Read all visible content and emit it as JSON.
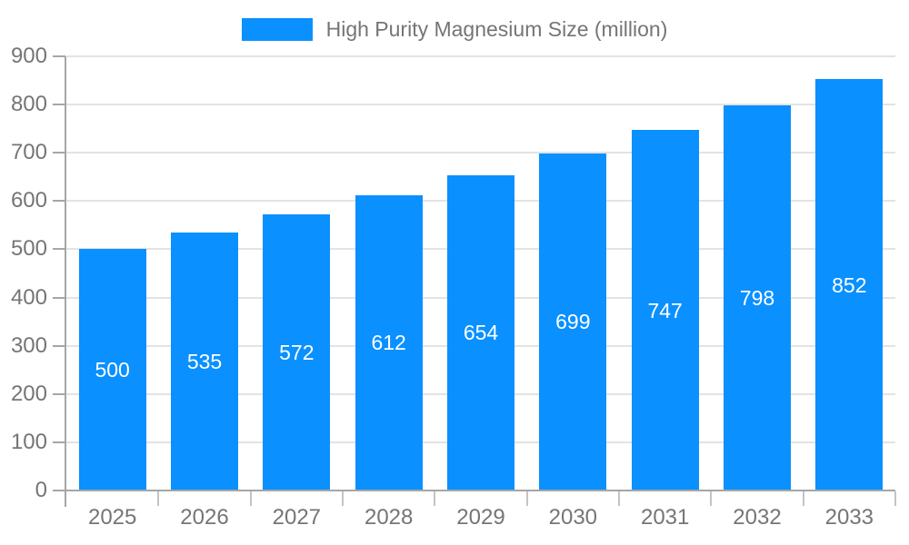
{
  "chart_data": {
    "type": "bar",
    "title": "High Purity Magnesium Size (million)",
    "legend": [
      "High Purity Magnesium Size (million)"
    ],
    "legend_position": "top-center",
    "categories": [
      "2025",
      "2026",
      "2027",
      "2028",
      "2029",
      "2030",
      "2031",
      "2032",
      "2033"
    ],
    "series": [
      {
        "name": "High Purity Magnesium Size (million)",
        "values": [
          500,
          535,
          572,
          612,
          654,
          699,
          747,
          798,
          852
        ]
      }
    ],
    "xlabel": "",
    "ylabel": "",
    "ylim": [
      0,
      900
    ],
    "ytick_step": 100,
    "grid": true,
    "bar_value_labels": "inside-middle"
  },
  "colors": {
    "bar": "#0a90ff",
    "bar_label": "#ffffff",
    "axis_text": "#757575",
    "axis_line": "#a6a6a6",
    "gridline": "#e3e3e3",
    "boundary_tick": "#c4c4c4",
    "background": "#ffffff"
  }
}
